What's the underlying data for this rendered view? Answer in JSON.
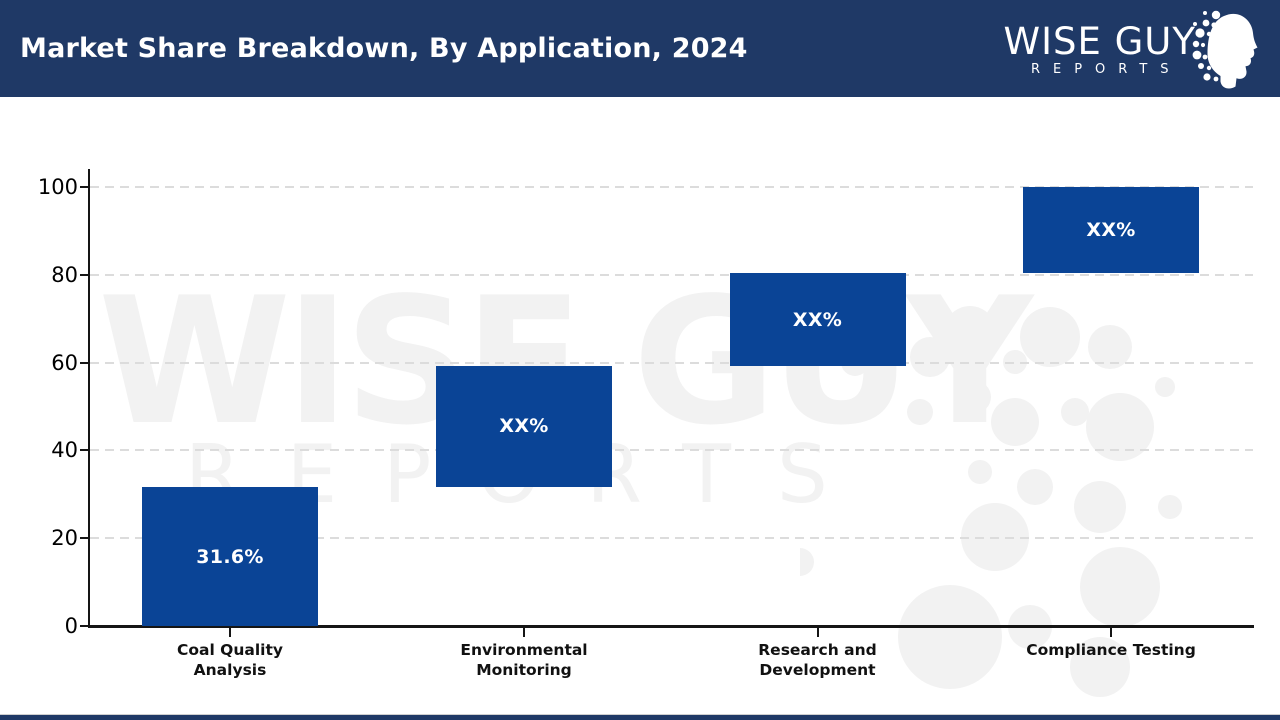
{
  "header": {
    "title": "Market Share Breakdown, By Application, 2024",
    "logo_name": "WISE GUY",
    "logo_sub": "REPORTS"
  },
  "watermark": {
    "name": "WISE GUY",
    "sub": "REPORTS"
  },
  "colors": {
    "header_bg": "#1f3966",
    "bar_fill": "#0a4496",
    "gridline": "#dcdcdc",
    "watermark": "#f2f2f2"
  },
  "chart_data": {
    "type": "bar",
    "subtype": "waterfall",
    "title": "Market Share Breakdown, By Application, 2024",
    "categories": [
      "Coal Quality Analysis",
      "Environmental Monitoring",
      "Research and Development",
      "Compliance Testing"
    ],
    "category_lines": [
      [
        "Coal Quality",
        "Analysis"
      ],
      [
        "Environmental",
        "Monitoring"
      ],
      [
        "Research and",
        "Development"
      ],
      [
        "Compliance Testing"
      ]
    ],
    "segments": [
      {
        "start": 0,
        "end": 31.6,
        "label": "31.6%"
      },
      {
        "start": 31.6,
        "end": 59.3,
        "label": "XX%"
      },
      {
        "start": 59.3,
        "end": 80.3,
        "label": "XX%"
      },
      {
        "start": 80.3,
        "end": 100,
        "label": "XX%"
      }
    ],
    "y_ticks": [
      0,
      20,
      40,
      60,
      80,
      100
    ],
    "ylim": [
      0,
      100
    ],
    "xlabel": "",
    "ylabel": "",
    "grid": true,
    "legend": false,
    "bar_color": "#0a4496"
  }
}
